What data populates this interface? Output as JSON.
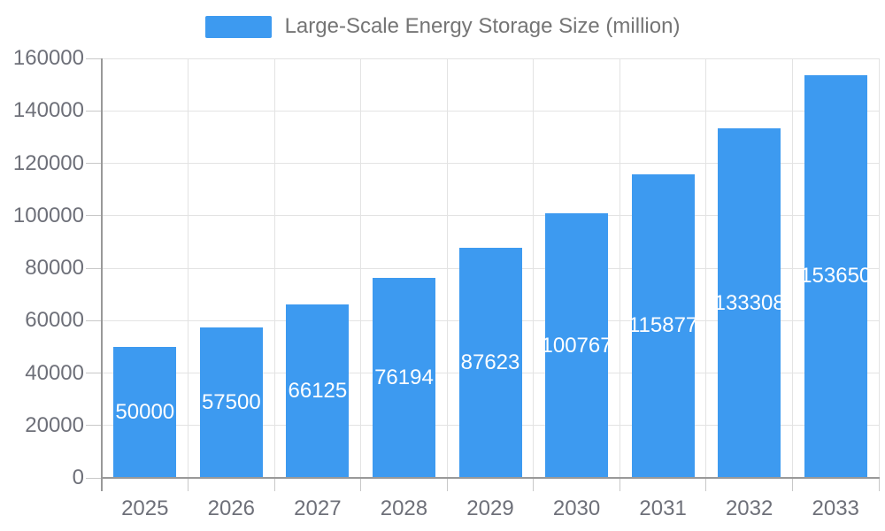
{
  "legend": {
    "label": "Large-Scale Energy Storage Size (million)"
  },
  "chart_data": {
    "type": "bar",
    "title": "Large-Scale Energy Storage Size (million)",
    "series_name": "Large-Scale Energy Storage Size (million)",
    "categories": [
      "2025",
      "2026",
      "2027",
      "2028",
      "2029",
      "2030",
      "2031",
      "2032",
      "2033"
    ],
    "values": [
      50000,
      57500,
      66125,
      76194,
      87623,
      100767,
      115877,
      133308,
      153650
    ],
    "value_labels": [
      "50000",
      "57500",
      "66125",
      "76194",
      "87623",
      "100767",
      "115877",
      "133308",
      "153650"
    ],
    "xlabel": "",
    "ylabel": "",
    "ylim": [
      0,
      160000
    ],
    "ytick_step": 20000,
    "yticks": [
      0,
      20000,
      40000,
      60000,
      80000,
      100000,
      120000,
      140000,
      160000
    ],
    "grid": true,
    "legend_position": "top",
    "value_label_position": "inside-middle"
  },
  "colors": {
    "bar": "#3d9af0",
    "bar_value_label": "#ffffff",
    "axis_line": "#999999",
    "tick": "#c8c8c8",
    "gridline": "#e3e3e3",
    "axis_text": "#6e7079",
    "legend_text": "#757575",
    "background": "#ffffff"
  }
}
